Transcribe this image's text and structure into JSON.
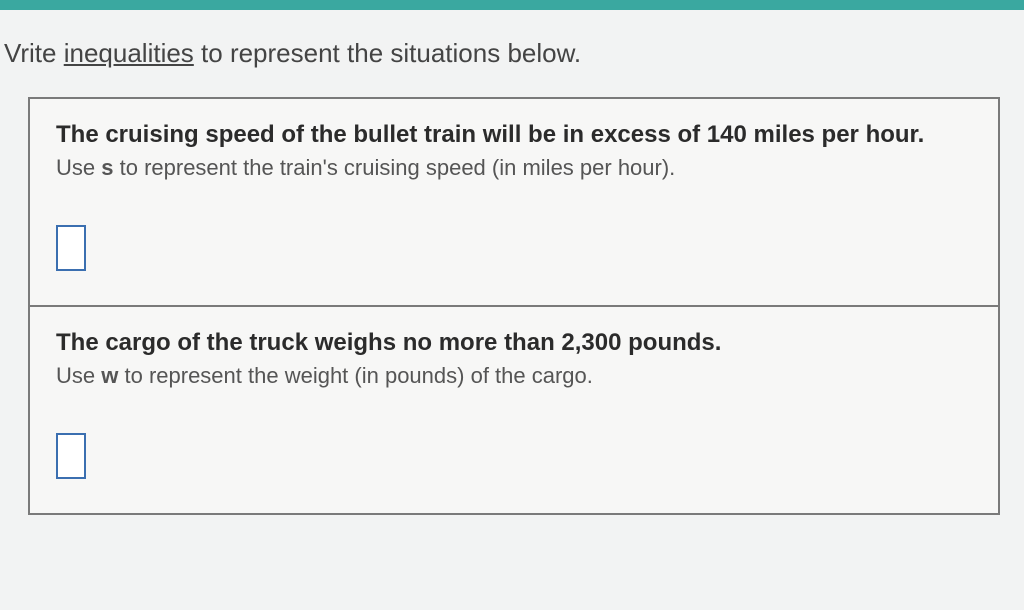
{
  "colors": {
    "accent_bar": "#3aa8a0",
    "page_bg": "#f2f3f3",
    "panel_bg": "#f7f7f6",
    "border": "#7a7a7a",
    "input_border": "#3b6fb0",
    "text_primary": "#3a3a3a",
    "text_muted": "#555555"
  },
  "instruction": {
    "prefix": "Vrite ",
    "underlined": "inequalities",
    "suffix": " to represent the situations below."
  },
  "problems": [
    {
      "bold_text": "The cruising speed of the bullet train will be in excess of 140 miles per hour.",
      "sub_prefix": "Use ",
      "variable": "s",
      "sub_suffix": " to represent the train's cruising speed (in miles per hour).",
      "input_value": ""
    },
    {
      "bold_text": "The cargo of the truck weighs no more than 2,300 pounds.",
      "sub_prefix": "Use ",
      "variable": "w",
      "sub_suffix": " to represent the weight (in pounds) of the cargo.",
      "input_value": ""
    }
  ]
}
